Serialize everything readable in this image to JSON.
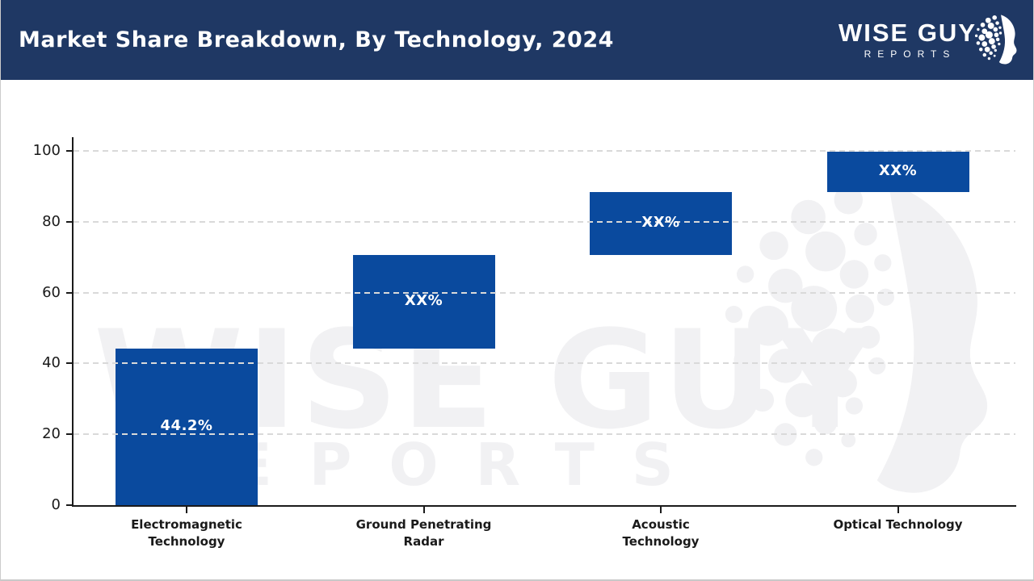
{
  "header": {
    "title": "Market Share Breakdown, By Technology, 2024",
    "logo": {
      "line1": "WISE GUY",
      "line2": "REPORTS"
    }
  },
  "watermark": {
    "line1": "WISE GUY",
    "line2": "REPORTS"
  },
  "colors": {
    "header_bg": "#1f3864",
    "bar": "#0a4a9e",
    "gridline": "#d9d9d9",
    "axis": "#1a1a1a",
    "bar_label": "#ffffff",
    "watermark": "#f1f1f3"
  },
  "chart_data": {
    "type": "bar",
    "subtype": "waterfall",
    "title": "Market Share Breakdown, By Technology, 2024",
    "categories": [
      "Electromagnetic Technology",
      "Ground Penetrating Radar",
      "Acoustic Technology",
      "Optical Technology"
    ],
    "category_lines": [
      [
        "Electromagnetic",
        "Technology"
      ],
      [
        "Ground Penetrating",
        "Radar"
      ],
      [
        "Acoustic",
        "Technology"
      ],
      [
        "Optical Technology"
      ]
    ],
    "series": [
      {
        "name": "Market Share (%)",
        "segments": [
          {
            "category": "Electromagnetic Technology",
            "start": 0,
            "end": 44.2,
            "label": "44.2%"
          },
          {
            "category": "Ground Penetrating Radar",
            "start": 44.2,
            "end": 70.6,
            "label": "XX%"
          },
          {
            "category": "Acoustic Technology",
            "start": 70.6,
            "end": 88.4,
            "label": "XX%"
          },
          {
            "category": "Optical Technology",
            "start": 88.4,
            "end": 99.8,
            "label": "XX%"
          }
        ]
      }
    ],
    "ylim": [
      0,
      100
    ],
    "yticks": [
      0,
      20,
      40,
      60,
      80,
      100
    ],
    "xlabel": "",
    "ylabel": "",
    "grid": "dashed-horizontal",
    "legend": "none"
  }
}
